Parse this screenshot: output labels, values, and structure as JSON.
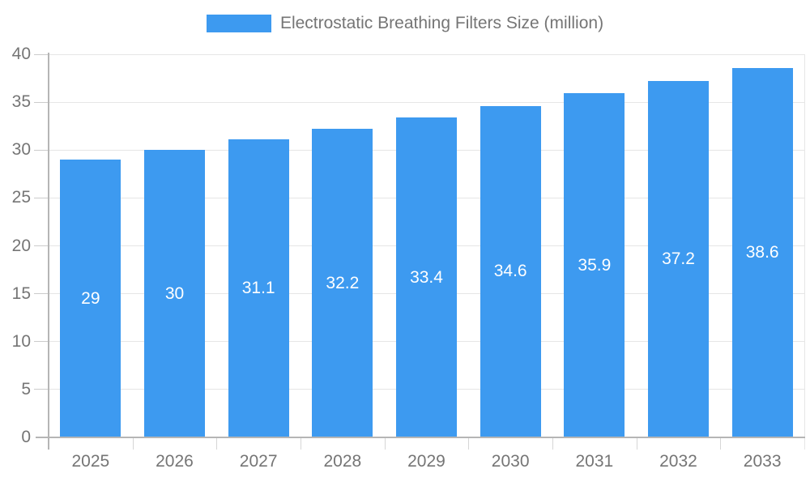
{
  "legend": {
    "label": "Electrostatic Breathing Filters Size (million)"
  },
  "chart_data": {
    "type": "bar",
    "title": "Electrostatic Breathing Filters Size (million)",
    "categories": [
      "2025",
      "2026",
      "2027",
      "2028",
      "2029",
      "2030",
      "2031",
      "2032",
      "2033"
    ],
    "values": [
      29,
      30,
      31.1,
      32.2,
      33.4,
      34.6,
      35.9,
      37.2,
      38.6
    ],
    "value_labels": [
      "29",
      "30",
      "31.1",
      "32.2",
      "33.4",
      "34.6",
      "35.9",
      "37.2",
      "38.6"
    ],
    "xlabel": "",
    "ylabel": "",
    "ylim": [
      0,
      40
    ],
    "yticks": [
      0,
      5,
      10,
      15,
      20,
      25,
      30,
      35,
      40
    ],
    "grid": true,
    "legend_position": "top-center",
    "value_label_position": "center-of-bar",
    "colors": {
      "bar": "#3D9AF0",
      "grid": "#E6E6E6",
      "axis": "#B5B5B5",
      "y_tick": "#CBCBCB",
      "x_tick": "#D6D6D6",
      "text": "#757575",
      "value_label": "#FFFFFF",
      "background": "#FFFFFF"
    }
  }
}
